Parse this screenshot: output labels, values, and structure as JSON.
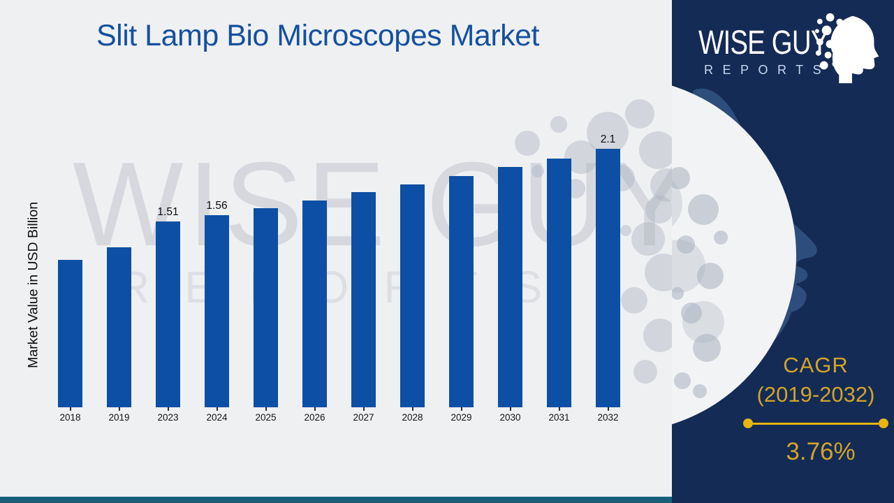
{
  "title": "Slit Lamp Bio Microscopes Market",
  "chart_data": {
    "type": "bar",
    "categories": [
      "2018",
      "2019",
      "2023",
      "2024",
      "2025",
      "2026",
      "2027",
      "2028",
      "2029",
      "2030",
      "2031",
      "2032"
    ],
    "values": [
      1.2,
      1.3,
      1.51,
      1.56,
      1.62,
      1.68,
      1.75,
      1.81,
      1.88,
      1.95,
      2.02,
      2.1
    ],
    "point_labels": [
      "",
      "",
      "1.51",
      "1.56",
      "",
      "",
      "",
      "",
      "",
      "",
      "",
      "2.1"
    ],
    "title": "Slit Lamp Bio Microscopes Market",
    "xlabel": "",
    "ylabel": "Market Value in USD Billion",
    "ylim": [
      0,
      2.4
    ],
    "grid": false,
    "legend": "none",
    "bar_color": "#0d4fa4"
  },
  "y_axis_label": "Market Value in USD Billion",
  "watermark": {
    "line1": "WISE GUY",
    "line2": "REPORTS"
  },
  "brand": {
    "line1": "WISE GUY",
    "line2": "REPORTS"
  },
  "cagr": {
    "heading": "CAGR",
    "range": "(2019-2032)",
    "value": "3.76%"
  },
  "colors": {
    "background": "#eff0f2",
    "bar": "#0d4fa4",
    "title_text": "#15509f",
    "panel_navy": "#142b55",
    "face_silhouette": "#2d4d7c",
    "gold_accent": "#d2a427",
    "teal_strip": "#186079",
    "watermark_gray": "#b2b8c3"
  }
}
